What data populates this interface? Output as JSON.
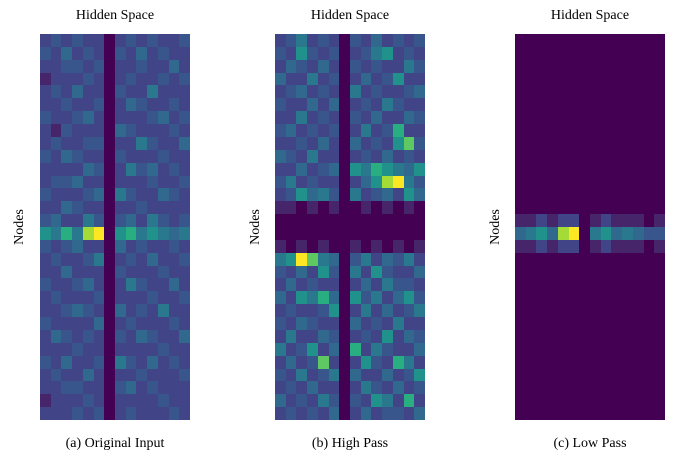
{
  "colors": {
    "background": "#ffffff",
    "text": "#000000",
    "viridis_stops": [
      "#440154",
      "#46256b",
      "#414487",
      "#39568c",
      "#31688e",
      "#2a788e",
      "#21918c",
      "#28ae80",
      "#5ec962",
      "#a5db36",
      "#fde725"
    ]
  },
  "chart_data": [
    {
      "type": "heatmap",
      "title": "Hidden Space",
      "xlabel": "",
      "ylabel": "Nodes",
      "caption": "(a) Original Input",
      "colormap": "viridis",
      "value_range": [
        0,
        10
      ],
      "rows": 30,
      "cols": 14,
      "values": [
        [
          2,
          3,
          2,
          3,
          2,
          2,
          0,
          2,
          3,
          2,
          3,
          2,
          2,
          3
        ],
        [
          3,
          2,
          4,
          2,
          3,
          2,
          0,
          3,
          2,
          4,
          2,
          3,
          2,
          2
        ],
        [
          2,
          2,
          3,
          3,
          2,
          3,
          0,
          2,
          2,
          3,
          2,
          2,
          4,
          2
        ],
        [
          1,
          2,
          2,
          2,
          3,
          2,
          0,
          2,
          3,
          2,
          2,
          3,
          2,
          3
        ],
        [
          2,
          3,
          2,
          4,
          2,
          2,
          0,
          3,
          2,
          2,
          5,
          2,
          2,
          2
        ],
        [
          2,
          2,
          3,
          2,
          2,
          3,
          0,
          2,
          4,
          3,
          2,
          2,
          3,
          2
        ],
        [
          3,
          2,
          2,
          3,
          4,
          2,
          0,
          2,
          2,
          2,
          3,
          4,
          2,
          3
        ],
        [
          2,
          1,
          3,
          2,
          2,
          2,
          0,
          4,
          3,
          2,
          2,
          2,
          3,
          2
        ],
        [
          2,
          3,
          2,
          2,
          3,
          3,
          0,
          2,
          2,
          5,
          3,
          2,
          2,
          4
        ],
        [
          3,
          2,
          4,
          3,
          2,
          2,
          0,
          3,
          2,
          2,
          2,
          3,
          2,
          2
        ],
        [
          2,
          2,
          2,
          2,
          4,
          3,
          0,
          2,
          5,
          3,
          4,
          2,
          3,
          2
        ],
        [
          2,
          3,
          3,
          4,
          2,
          2,
          0,
          2,
          2,
          2,
          3,
          2,
          2,
          3
        ],
        [
          3,
          2,
          2,
          2,
          3,
          4,
          0,
          5,
          3,
          2,
          2,
          4,
          3,
          2
        ],
        [
          2,
          2,
          4,
          3,
          2,
          2,
          0,
          2,
          2,
          3,
          2,
          2,
          2,
          2
        ],
        [
          3,
          4,
          2,
          2,
          5,
          3,
          0,
          3,
          4,
          2,
          5,
          3,
          2,
          3
        ],
        [
          6,
          5,
          7,
          5,
          9,
          10,
          0,
          6,
          7,
          5,
          6,
          5,
          4,
          5
        ],
        [
          3,
          2,
          3,
          4,
          2,
          2,
          0,
          4,
          2,
          3,
          2,
          2,
          3,
          2
        ],
        [
          2,
          3,
          2,
          2,
          3,
          5,
          0,
          2,
          3,
          2,
          4,
          2,
          2,
          3
        ],
        [
          2,
          2,
          4,
          2,
          2,
          2,
          0,
          3,
          2,
          2,
          2,
          3,
          2,
          2
        ],
        [
          3,
          2,
          2,
          3,
          4,
          2,
          0,
          2,
          5,
          3,
          2,
          2,
          4,
          2
        ],
        [
          2,
          3,
          2,
          2,
          2,
          3,
          0,
          2,
          2,
          2,
          3,
          2,
          2,
          3
        ],
        [
          2,
          2,
          3,
          4,
          3,
          2,
          0,
          4,
          2,
          3,
          2,
          5,
          2,
          2
        ],
        [
          3,
          2,
          2,
          2,
          2,
          4,
          0,
          2,
          3,
          2,
          2,
          2,
          3,
          2
        ],
        [
          2,
          4,
          3,
          2,
          3,
          2,
          0,
          3,
          2,
          4,
          3,
          2,
          2,
          4
        ],
        [
          2,
          2,
          2,
          3,
          2,
          2,
          0,
          2,
          2,
          2,
          2,
          3,
          2,
          2
        ],
        [
          3,
          2,
          4,
          2,
          2,
          3,
          0,
          5,
          3,
          2,
          4,
          2,
          3,
          2
        ],
        [
          2,
          3,
          2,
          2,
          4,
          2,
          0,
          2,
          2,
          3,
          2,
          2,
          2,
          3
        ],
        [
          2,
          2,
          3,
          3,
          2,
          2,
          0,
          3,
          4,
          2,
          3,
          2,
          2,
          2
        ],
        [
          1,
          2,
          2,
          2,
          3,
          2,
          0,
          2,
          2,
          2,
          2,
          3,
          2,
          2
        ],
        [
          2,
          2,
          2,
          3,
          2,
          3,
          0,
          2,
          3,
          2,
          2,
          2,
          3,
          2
        ]
      ]
    },
    {
      "type": "heatmap",
      "title": "Hidden Space",
      "xlabel": "",
      "ylabel": "Nodes",
      "caption": "(b) High Pass",
      "colormap": "viridis",
      "value_range": [
        0,
        10
      ],
      "rows": 30,
      "cols": 14,
      "values": [
        [
          2,
          3,
          5,
          2,
          3,
          2,
          0,
          3,
          2,
          4,
          2,
          3,
          2,
          3
        ],
        [
          3,
          2,
          6,
          3,
          2,
          3,
          0,
          2,
          3,
          5,
          6,
          2,
          3,
          2
        ],
        [
          2,
          4,
          3,
          2,
          4,
          2,
          0,
          3,
          2,
          3,
          2,
          2,
          5,
          3
        ],
        [
          4,
          2,
          2,
          5,
          2,
          3,
          0,
          2,
          4,
          2,
          3,
          6,
          2,
          2
        ],
        [
          2,
          3,
          4,
          2,
          3,
          2,
          0,
          5,
          2,
          3,
          2,
          2,
          3,
          4
        ],
        [
          3,
          2,
          2,
          4,
          2,
          4,
          0,
          2,
          3,
          2,
          5,
          3,
          2,
          2
        ],
        [
          2,
          2,
          5,
          2,
          3,
          2,
          0,
          3,
          2,
          4,
          2,
          2,
          4,
          3
        ],
        [
          3,
          4,
          2,
          3,
          2,
          3,
          0,
          2,
          5,
          2,
          3,
          7,
          2,
          2
        ],
        [
          2,
          2,
          3,
          2,
          4,
          2,
          0,
          4,
          2,
          3,
          2,
          6,
          8,
          3
        ],
        [
          4,
          3,
          2,
          5,
          2,
          2,
          0,
          2,
          3,
          2,
          4,
          2,
          3,
          2
        ],
        [
          2,
          2,
          4,
          2,
          3,
          4,
          0,
          6,
          5,
          7,
          6,
          5,
          4,
          6
        ],
        [
          3,
          5,
          2,
          3,
          2,
          2,
          0,
          2,
          4,
          6,
          9,
          10,
          5,
          3
        ],
        [
          2,
          3,
          6,
          4,
          5,
          3,
          0,
          5,
          2,
          3,
          4,
          2,
          6,
          4
        ],
        [
          1,
          1,
          0,
          1,
          0,
          1,
          0,
          0,
          1,
          0,
          1,
          0,
          1,
          0
        ],
        [
          0,
          0,
          0,
          0,
          0,
          0,
          0,
          0,
          0,
          0,
          0,
          0,
          0,
          0
        ],
        [
          0,
          0,
          0,
          0,
          0,
          0,
          0,
          0,
          0,
          0,
          0,
          0,
          0,
          0
        ],
        [
          1,
          0,
          1,
          0,
          1,
          0,
          0,
          1,
          0,
          1,
          0,
          1,
          0,
          1
        ],
        [
          5,
          6,
          10,
          8,
          5,
          4,
          0,
          3,
          5,
          2,
          4,
          3,
          5,
          2
        ],
        [
          3,
          2,
          4,
          2,
          6,
          3,
          0,
          5,
          2,
          6,
          3,
          2,
          2,
          4
        ],
        [
          2,
          4,
          2,
          3,
          2,
          2,
          0,
          2,
          4,
          2,
          5,
          3,
          3,
          2
        ],
        [
          4,
          2,
          6,
          5,
          7,
          4,
          0,
          6,
          3,
          5,
          2,
          4,
          6,
          3
        ],
        [
          2,
          3,
          2,
          2,
          3,
          6,
          0,
          2,
          5,
          2,
          4,
          2,
          3,
          5
        ],
        [
          3,
          2,
          4,
          3,
          2,
          2,
          0,
          4,
          2,
          3,
          2,
          5,
          2,
          2
        ],
        [
          2,
          5,
          2,
          2,
          4,
          3,
          0,
          2,
          3,
          2,
          6,
          2,
          4,
          3
        ],
        [
          5,
          2,
          3,
          6,
          2,
          4,
          0,
          7,
          2,
          5,
          3,
          2,
          2,
          4
        ],
        [
          2,
          4,
          2,
          3,
          8,
          2,
          0,
          2,
          6,
          3,
          2,
          7,
          5,
          2
        ],
        [
          3,
          2,
          5,
          2,
          3,
          5,
          0,
          4,
          2,
          2,
          4,
          2,
          3,
          6
        ],
        [
          2,
          3,
          2,
          4,
          2,
          2,
          0,
          2,
          5,
          3,
          2,
          4,
          2,
          3
        ],
        [
          4,
          2,
          3,
          2,
          5,
          3,
          0,
          3,
          2,
          6,
          5,
          2,
          7,
          2
        ],
        [
          2,
          3,
          2,
          3,
          2,
          4,
          0,
          2,
          4,
          2,
          3,
          3,
          2,
          4
        ]
      ]
    },
    {
      "type": "heatmap",
      "title": "Hidden Space",
      "xlabel": "",
      "ylabel": "Nodes",
      "caption": "(c) Low Pass",
      "colormap": "viridis",
      "value_range": [
        0,
        10
      ],
      "rows": 30,
      "cols": 14,
      "values": [
        [
          0,
          0,
          0,
          0,
          0,
          0,
          0,
          0,
          0,
          0,
          0,
          0,
          0,
          0
        ],
        [
          0,
          0,
          0,
          0,
          0,
          0,
          0,
          0,
          0,
          0,
          0,
          0,
          0,
          0
        ],
        [
          0,
          0,
          0,
          0,
          0,
          0,
          0,
          0,
          0,
          0,
          0,
          0,
          0,
          0
        ],
        [
          0,
          0,
          0,
          0,
          0,
          0,
          0,
          0,
          0,
          0,
          0,
          0,
          0,
          0
        ],
        [
          0,
          0,
          0,
          0,
          0,
          0,
          0,
          0,
          0,
          0,
          0,
          0,
          0,
          0
        ],
        [
          0,
          0,
          0,
          0,
          0,
          0,
          0,
          0,
          0,
          0,
          0,
          0,
          0,
          0
        ],
        [
          0,
          0,
          0,
          0,
          0,
          0,
          0,
          0,
          0,
          0,
          0,
          0,
          0,
          0
        ],
        [
          0,
          0,
          0,
          0,
          0,
          0,
          0,
          0,
          0,
          0,
          0,
          0,
          0,
          0
        ],
        [
          0,
          0,
          0,
          0,
          0,
          0,
          0,
          0,
          0,
          0,
          0,
          0,
          0,
          0
        ],
        [
          0,
          0,
          0,
          0,
          0,
          0,
          0,
          0,
          0,
          0,
          0,
          0,
          0,
          0
        ],
        [
          0,
          0,
          0,
          0,
          0,
          0,
          0,
          0,
          0,
          0,
          0,
          0,
          0,
          0
        ],
        [
          0,
          0,
          0,
          0,
          0,
          0,
          0,
          0,
          0,
          0,
          0,
          0,
          0,
          0
        ],
        [
          0,
          0,
          0,
          0,
          0,
          0,
          0,
          0,
          0,
          0,
          0,
          0,
          0,
          0
        ],
        [
          0,
          0,
          0,
          0,
          0,
          0,
          0,
          0,
          0,
          0,
          0,
          0,
          0,
          0
        ],
        [
          1,
          1,
          2,
          1,
          2,
          2,
          0,
          1,
          2,
          1,
          1,
          1,
          0,
          1
        ],
        [
          4,
          5,
          6,
          4,
          9,
          10,
          0,
          5,
          6,
          4,
          5,
          4,
          3,
          3
        ],
        [
          1,
          1,
          2,
          1,
          2,
          2,
          0,
          1,
          2,
          1,
          1,
          1,
          0,
          1
        ],
        [
          0,
          0,
          0,
          0,
          0,
          0,
          0,
          0,
          0,
          0,
          0,
          0,
          0,
          0
        ],
        [
          0,
          0,
          0,
          0,
          0,
          0,
          0,
          0,
          0,
          0,
          0,
          0,
          0,
          0
        ],
        [
          0,
          0,
          0,
          0,
          0,
          0,
          0,
          0,
          0,
          0,
          0,
          0,
          0,
          0
        ],
        [
          0,
          0,
          0,
          0,
          0,
          0,
          0,
          0,
          0,
          0,
          0,
          0,
          0,
          0
        ],
        [
          0,
          0,
          0,
          0,
          0,
          0,
          0,
          0,
          0,
          0,
          0,
          0,
          0,
          0
        ],
        [
          0,
          0,
          0,
          0,
          0,
          0,
          0,
          0,
          0,
          0,
          0,
          0,
          0,
          0
        ],
        [
          0,
          0,
          0,
          0,
          0,
          0,
          0,
          0,
          0,
          0,
          0,
          0,
          0,
          0
        ],
        [
          0,
          0,
          0,
          0,
          0,
          0,
          0,
          0,
          0,
          0,
          0,
          0,
          0,
          0
        ],
        [
          0,
          0,
          0,
          0,
          0,
          0,
          0,
          0,
          0,
          0,
          0,
          0,
          0,
          0
        ],
        [
          0,
          0,
          0,
          0,
          0,
          0,
          0,
          0,
          0,
          0,
          0,
          0,
          0,
          0
        ],
        [
          0,
          0,
          0,
          0,
          0,
          0,
          0,
          0,
          0,
          0,
          0,
          0,
          0,
          0
        ],
        [
          0,
          0,
          0,
          0,
          0,
          0,
          0,
          0,
          0,
          0,
          0,
          0,
          0,
          0
        ],
        [
          0,
          0,
          0,
          0,
          0,
          0,
          0,
          0,
          0,
          0,
          0,
          0,
          0,
          0
        ]
      ]
    }
  ]
}
